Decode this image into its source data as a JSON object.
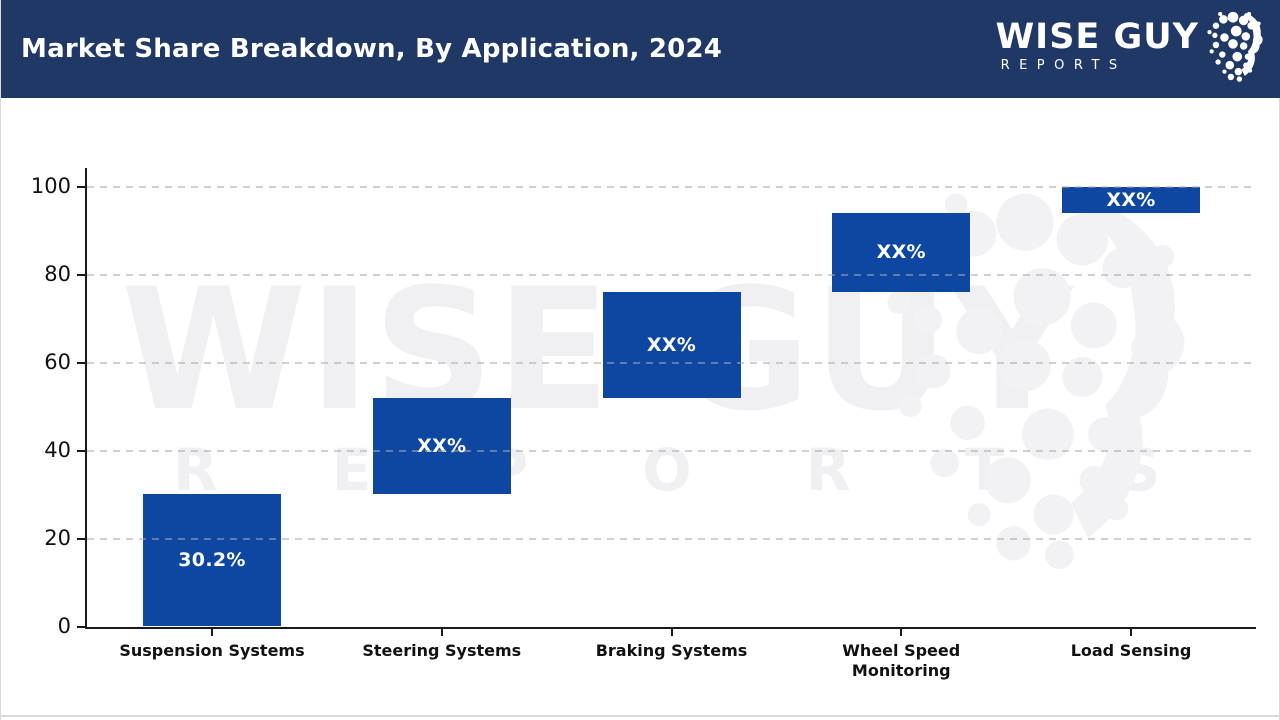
{
  "header": {
    "title": "Market Share Breakdown, By Application, 2024",
    "background_color": "#1F3866",
    "logo": {
      "line1": "WISE GUY",
      "line2": "REPORTS",
      "icon": "head-profile-dots-icon"
    }
  },
  "watermark": {
    "line1": "WISE GUY",
    "line2": "R E P O R T S",
    "icon": "head-profile-dots-icon"
  },
  "chart_data": {
    "type": "bar",
    "subtype": "waterfall-floating-segments",
    "title": "Market Share Breakdown, By Application, 2024",
    "categories": [
      "Suspension Systems",
      "Steering Systems",
      "Braking Systems",
      "Wheel Speed Monitoring",
      "Load Sensing"
    ],
    "series": [
      {
        "name": "Market share (%)",
        "segments": [
          {
            "category": "Suspension Systems",
            "start": 0,
            "end": 30.2,
            "label": "30.2%"
          },
          {
            "category": "Steering Systems",
            "start": 30.2,
            "end": 52,
            "label": "XX%"
          },
          {
            "category": "Braking Systems",
            "start": 52,
            "end": 76,
            "label": "XX%"
          },
          {
            "category": "Wheel Speed Monitoring",
            "start": 76,
            "end": 94,
            "label": "XX%"
          },
          {
            "category": "Load Sensing",
            "start": 94,
            "end": 100,
            "label": "XX%"
          }
        ]
      }
    ],
    "xlabel": "",
    "ylabel": "",
    "ylim": [
      0,
      105
    ],
    "yticks": [
      0,
      20,
      40,
      60,
      80,
      100
    ],
    "grid": "horizontal-dashed",
    "legend": "none",
    "bar_color": "#0D47A1",
    "bar_label_color": "#FFFFFF",
    "axis_color": "#1A1A1A",
    "grid_color": "#D3D3D3"
  }
}
